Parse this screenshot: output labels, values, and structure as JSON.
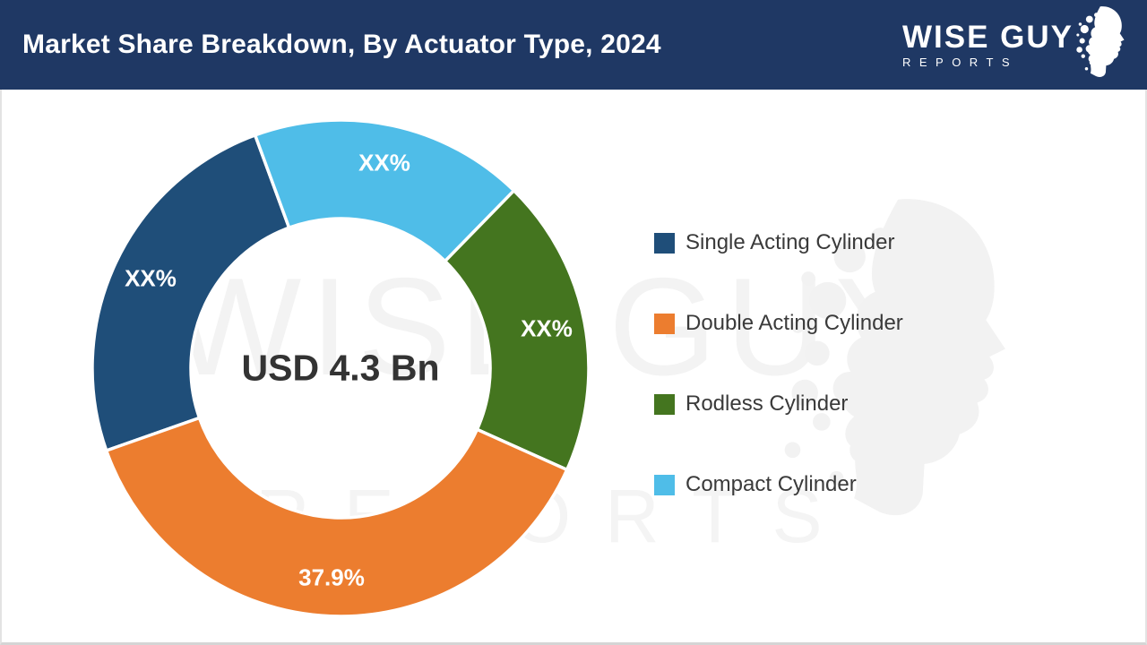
{
  "header": {
    "title": "Market Share Breakdown, By Actuator Type, 2024",
    "logo": {
      "line1": "WISE GUY",
      "line2": "REPORTS"
    }
  },
  "watermark": {
    "line1": "WISE GUY",
    "line2": "REPORTS"
  },
  "chart_data": {
    "type": "donut",
    "title": "Market Share Breakdown, By Actuator Type, 2024",
    "center_label": "USD 4.3 Bn",
    "legend_position": "right",
    "start_angle_deg": 250.6,
    "draw_order": [
      0,
      3,
      2,
      1
    ],
    "slices": [
      {
        "label": "Single Acting Cylinder",
        "display_value": "XX%",
        "value_pct_est": 24.8,
        "color": "#1f4e79"
      },
      {
        "label": "Double Acting Cylinder",
        "display_value": "37.9%",
        "value_pct_est": 37.9,
        "color": "#ec7d2f"
      },
      {
        "label": "Rodless Cylinder",
        "display_value": "XX%",
        "value_pct_est": 19.4,
        "color": "#44751f"
      },
      {
        "label": "Compact Cylinder",
        "display_value": "XX%",
        "value_pct_est": 17.9,
        "color": "#4fbde8"
      }
    ],
    "colors": {
      "header_bg": "#1f3864",
      "center_text": "#333333",
      "legend_text": "#3a3a3a",
      "slice_label_text": "#ffffff",
      "watermark": "#f3f3f3"
    }
  }
}
